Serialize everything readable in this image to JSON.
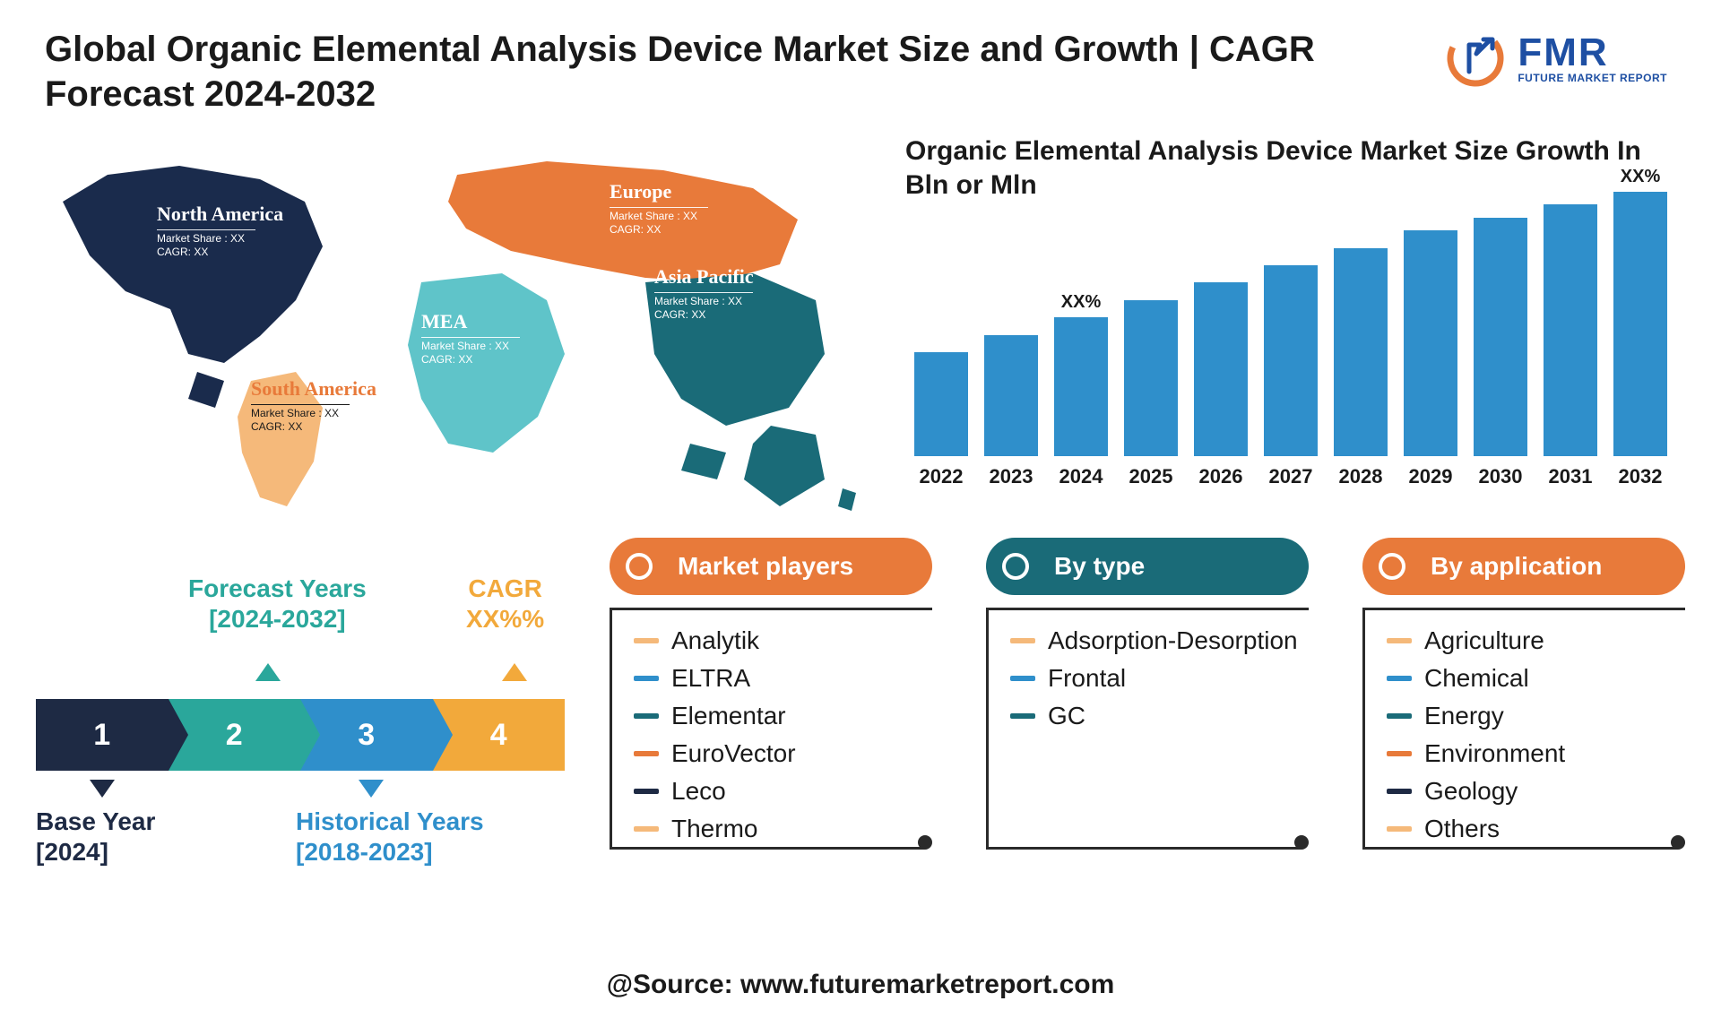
{
  "title": "Global Organic Elemental Analysis Device Market Size and Growth | CAGR Forecast 2024-2032",
  "logo": {
    "fmr": "FMR",
    "sub": "FUTURE MARKET REPORT"
  },
  "colors": {
    "bar": "#2f8fcb",
    "na": "#1a2b4c",
    "sa": "#f5b97a",
    "eu": "#e87a3a",
    "mea": "#5fc4c9",
    "ap": "#1a6b78",
    "pill_orange": "#e87a3a",
    "pill_teal": "#1a6b78",
    "tl1": "#1e2a44",
    "tl2": "#2aa79b",
    "tl3": "#2f8fcb",
    "tl4": "#f2a93b",
    "dash_palette": [
      "#f5b97a",
      "#2f8fcb",
      "#1a6b78",
      "#e87a3a",
      "#1e2a44",
      "#f5b97a"
    ]
  },
  "map": {
    "regions": [
      {
        "key": "na",
        "name": "North America",
        "share": "Market Share : XX",
        "cagr": "CAGR: XX"
      },
      {
        "key": "sa",
        "name": "South America",
        "share": "Market Share : XX",
        "cagr": "CAGR: XX"
      },
      {
        "key": "eu",
        "name": "Europe",
        "share": "Market Share : XX",
        "cagr": "CAGR: XX"
      },
      {
        "key": "mea",
        "name": "MEA",
        "share": "Market Share : XX",
        "cagr": "CAGR: XX"
      },
      {
        "key": "ap",
        "name": "Asia Pacific",
        "share": "Market Share : XX",
        "cagr": "CAGR: XX"
      }
    ]
  },
  "chart": {
    "title": "Organic Elemental Analysis Device Market Size Growth In\nBln or Mln",
    "years": [
      "2022",
      "2023",
      "2024",
      "2025",
      "2026",
      "2027",
      "2028",
      "2029",
      "2030",
      "2031",
      "2032"
    ],
    "values": [
      120,
      140,
      160,
      180,
      200,
      220,
      240,
      260,
      275,
      290,
      305
    ],
    "ymax": 310,
    "annot_first": "XX%",
    "annot_last": "XX%",
    "bar_color": "#2f8fcb",
    "label_fontsize": 22
  },
  "timeline": {
    "forecast_label": "Forecast Years",
    "forecast_range": "[2024-2032]",
    "cagr_label": "CAGR",
    "cagr_value": "XX%%",
    "base_label": "Base Year",
    "base_range": "[2024]",
    "hist_label": "Historical Years",
    "hist_range": "[2018-2023]",
    "segs": [
      "1",
      "2",
      "3",
      "4"
    ],
    "seg_colors": [
      "#1e2a44",
      "#2aa79b",
      "#2f8fcb",
      "#f2a93b"
    ]
  },
  "pills": [
    {
      "title": "Market players",
      "color": "#e87a3a",
      "items": [
        "Analytik",
        "ELTRA",
        "Elementar",
        "EuroVector",
        "Leco",
        "Thermo"
      ]
    },
    {
      "title": "By type",
      "color": "#1a6b78",
      "items": [
        "Adsorption-Desorption",
        "Frontal",
        "GC"
      ]
    },
    {
      "title": "By application",
      "color": "#e87a3a",
      "items": [
        "Agriculture",
        "Chemical",
        "Energy",
        "Environment",
        "Geology",
        "Others"
      ]
    }
  ],
  "source": "@Source: www.futuremarketreport.com"
}
